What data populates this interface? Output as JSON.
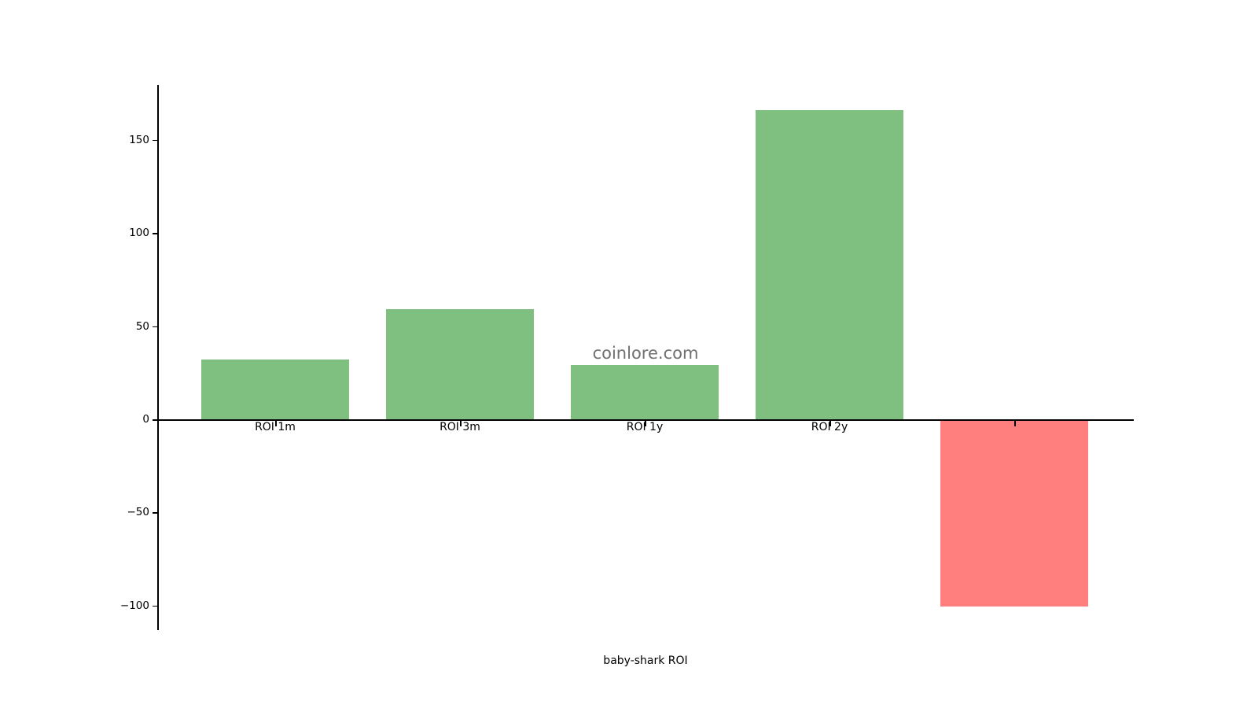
{
  "chart_data": {
    "type": "bar",
    "title": "baby-shark ROI",
    "watermark": "coinlore.com",
    "categories": [
      "ROI 1m",
      "ROI 3m",
      "ROI 1y",
      "ROI 2y",
      ""
    ],
    "values": [
      32,
      59,
      29,
      166,
      -100
    ],
    "yticks": [
      {
        "value": 150,
        "label": "150"
      },
      {
        "value": 100,
        "label": "100"
      },
      {
        "value": 50,
        "label": "50"
      },
      {
        "value": 0,
        "label": "0"
      },
      {
        "value": -50,
        "label": "−50"
      },
      {
        "value": -100,
        "label": "−100"
      }
    ],
    "ylim": [
      -113,
      180
    ],
    "xlabel": "baby-shark ROI",
    "ylabel": "",
    "grid": false,
    "legend": false,
    "colors": {
      "positive_bar": "#7fbf7f",
      "negative_bar": "#ff7f7f",
      "axis": "#000000",
      "tick_text": "#000000",
      "watermark_text": "#707070",
      "background": "#ffffff"
    }
  }
}
